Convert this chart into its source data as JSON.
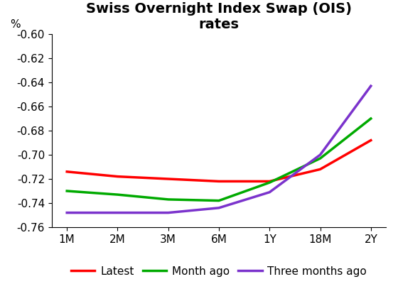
{
  "title": "Swiss Overnight Index Swap (OIS)\nrates",
  "x_labels": [
    "1M",
    "2M",
    "3M",
    "6M",
    "1Y",
    "18M",
    "2Y"
  ],
  "x_positions": [
    0,
    1,
    2,
    3,
    4,
    5,
    6
  ],
  "series_order": [
    "Latest",
    "Month ago",
    "Three months ago"
  ],
  "series": {
    "Latest": {
      "color": "#FF0000",
      "values": [
        -0.714,
        -0.718,
        -0.72,
        -0.722,
        -0.722,
        -0.712,
        -0.688
      ]
    },
    "Month ago": {
      "color": "#00AA00",
      "values": [
        -0.73,
        -0.733,
        -0.737,
        -0.738,
        -0.723,
        -0.703,
        -0.67
      ]
    },
    "Three months ago": {
      "color": "#7B33CC",
      "values": [
        -0.748,
        -0.748,
        -0.748,
        -0.744,
        -0.731,
        -0.7,
        -0.643
      ]
    }
  },
  "ylim": [
    -0.76,
    -0.6
  ],
  "yticks": [
    -0.76,
    -0.74,
    -0.72,
    -0.7,
    -0.68,
    -0.66,
    -0.64,
    -0.62,
    -0.6
  ],
  "percent_label": "%",
  "background_color": "#FFFFFF",
  "linewidth": 2.5,
  "legend_ncol": 3,
  "title_fontsize": 14,
  "tick_fontsize": 11,
  "legend_fontsize": 11
}
